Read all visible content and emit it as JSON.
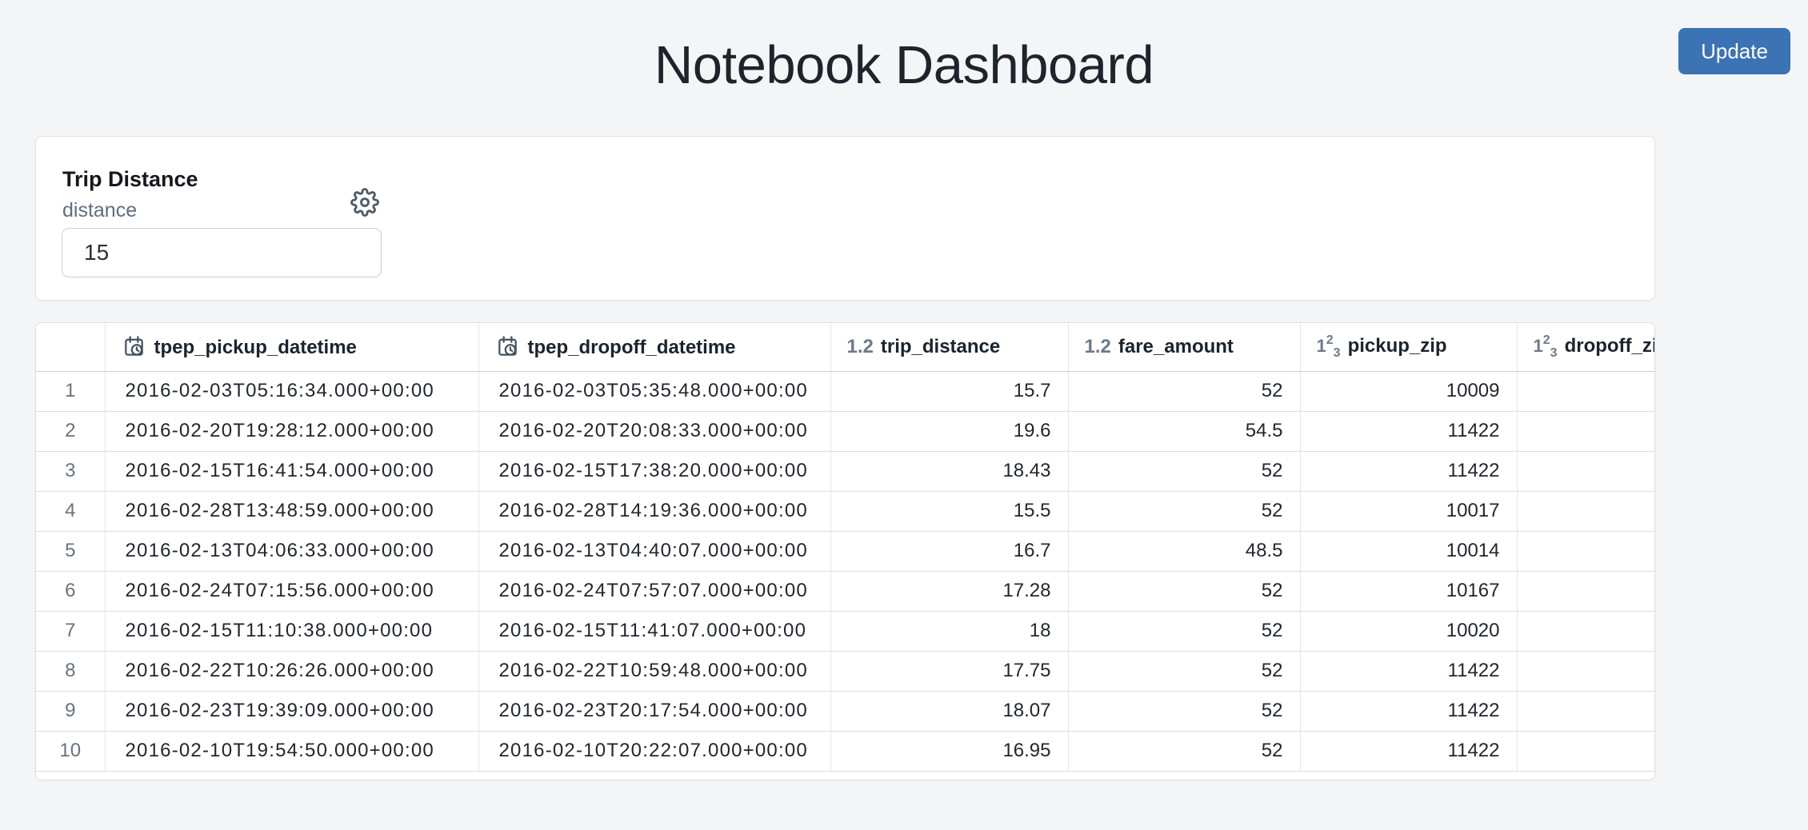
{
  "header": {
    "title": "Notebook Dashboard",
    "update_button": "Update"
  },
  "filter_card": {
    "label": "Trip Distance",
    "field": "distance",
    "value": "15",
    "gear_icon": "gear-icon"
  },
  "table": {
    "columns": [
      {
        "key": "row_number",
        "label": "",
        "icon": "none",
        "align": "center"
      },
      {
        "key": "tpep_pickup_datetime",
        "label": "tpep_pickup_datetime",
        "icon": "calendar-clock-icon",
        "align": "left"
      },
      {
        "key": "tpep_dropoff_datetime",
        "label": "tpep_dropoff_datetime",
        "icon": "calendar-clock-icon",
        "align": "left"
      },
      {
        "key": "trip_distance",
        "label": "trip_distance",
        "icon": "decimal-icon",
        "align": "right"
      },
      {
        "key": "fare_amount",
        "label": "fare_amount",
        "icon": "decimal-icon",
        "align": "right"
      },
      {
        "key": "pickup_zip",
        "label": "pickup_zip",
        "icon": "integer-icon",
        "align": "right"
      },
      {
        "key": "dropoff_zip",
        "label": "dropoff_zip",
        "icon": "integer-icon",
        "align": "right"
      }
    ],
    "rows": [
      [
        "1",
        "2016-02-03T05:16:34.000+00:00",
        "2016-02-03T05:35:48.000+00:00",
        "15.7",
        "52",
        "10009",
        ""
      ],
      [
        "2",
        "2016-02-20T19:28:12.000+00:00",
        "2016-02-20T20:08:33.000+00:00",
        "19.6",
        "54.5",
        "11422",
        ""
      ],
      [
        "3",
        "2016-02-15T16:41:54.000+00:00",
        "2016-02-15T17:38:20.000+00:00",
        "18.43",
        "52",
        "11422",
        ""
      ],
      [
        "4",
        "2016-02-28T13:48:59.000+00:00",
        "2016-02-28T14:19:36.000+00:00",
        "15.5",
        "52",
        "10017",
        ""
      ],
      [
        "5",
        "2016-02-13T04:06:33.000+00:00",
        "2016-02-13T04:40:07.000+00:00",
        "16.7",
        "48.5",
        "10014",
        ""
      ],
      [
        "6",
        "2016-02-24T07:15:56.000+00:00",
        "2016-02-24T07:57:07.000+00:00",
        "17.28",
        "52",
        "10167",
        ""
      ],
      [
        "7",
        "2016-02-15T11:10:38.000+00:00",
        "2016-02-15T11:41:07.000+00:00",
        "18",
        "52",
        "10020",
        ""
      ],
      [
        "8",
        "2016-02-22T10:26:26.000+00:00",
        "2016-02-22T10:59:48.000+00:00",
        "17.75",
        "52",
        "11422",
        ""
      ],
      [
        "9",
        "2016-02-23T19:39:09.000+00:00",
        "2016-02-23T20:17:54.000+00:00",
        "18.07",
        "52",
        "11422",
        ""
      ],
      [
        "10",
        "2016-02-10T19:54:50.000+00:00",
        "2016-02-10T20:22:07.000+00:00",
        "16.95",
        "52",
        "11422",
        ""
      ]
    ]
  },
  "colors": {
    "accent_blue": "#3b73b4",
    "page_background": "#f4f5f7",
    "icon_gray": "#6b7b89",
    "row_number_gray": "#68737e"
  }
}
